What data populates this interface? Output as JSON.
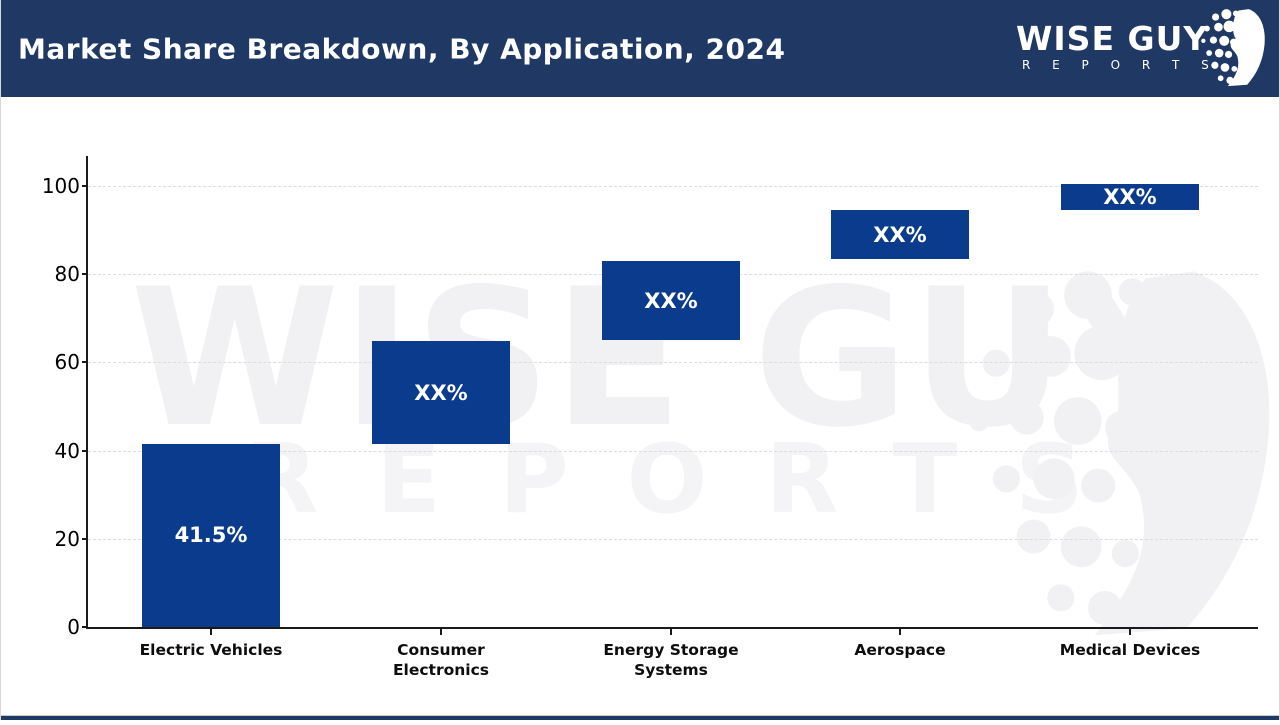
{
  "header": {
    "title": "Market Share Breakdown, By Application, 2024",
    "logo": {
      "line1": "WISE GUY",
      "line2": "R E P O R T S"
    }
  },
  "watermark": {
    "line1": "WISE GUY",
    "line2": "REPORTS"
  },
  "colors": {
    "header_bg": "#1f3864",
    "footer_bg": "#1f3864",
    "bar_blue": "#0a3b8c",
    "grid": "#dcdcdc",
    "watermark": "#f1f1f4"
  },
  "chart_data": {
    "type": "bar",
    "subtype": "waterfall",
    "title": "Market Share Breakdown, By Application, 2024",
    "xlabel": "",
    "ylabel": "",
    "ylim": [
      0,
      105
    ],
    "yticks": [
      0,
      20,
      40,
      60,
      80,
      100
    ],
    "grid": "horizontal-dashed",
    "legend": "none",
    "categories": [
      "Electric Vehicles",
      "Consumer Electronics",
      "Energy Storage Systems",
      "Aerospace",
      "Medical Devices"
    ],
    "categories_lines": [
      [
        "Electric Vehicles"
      ],
      [
        "Consumer",
        "Electronics"
      ],
      [
        "Energy Storage",
        "Systems"
      ],
      [
        "Aerospace"
      ],
      [
        "Medical Devices"
      ]
    ],
    "segments": [
      {
        "category": "Electric Vehicles",
        "start": 0,
        "end": 41.5,
        "label": "41.5%"
      },
      {
        "category": "Consumer Electronics",
        "start": 41.5,
        "end": 64.8,
        "label": "XX%"
      },
      {
        "category": "Energy Storage Systems",
        "start": 65.0,
        "end": 83.0,
        "label": "XX%"
      },
      {
        "category": "Aerospace",
        "start": 83.5,
        "end": 94.5,
        "label": "XX%"
      },
      {
        "category": "Medical Devices",
        "start": 94.5,
        "end": 100.5,
        "label": "XX%"
      }
    ]
  }
}
